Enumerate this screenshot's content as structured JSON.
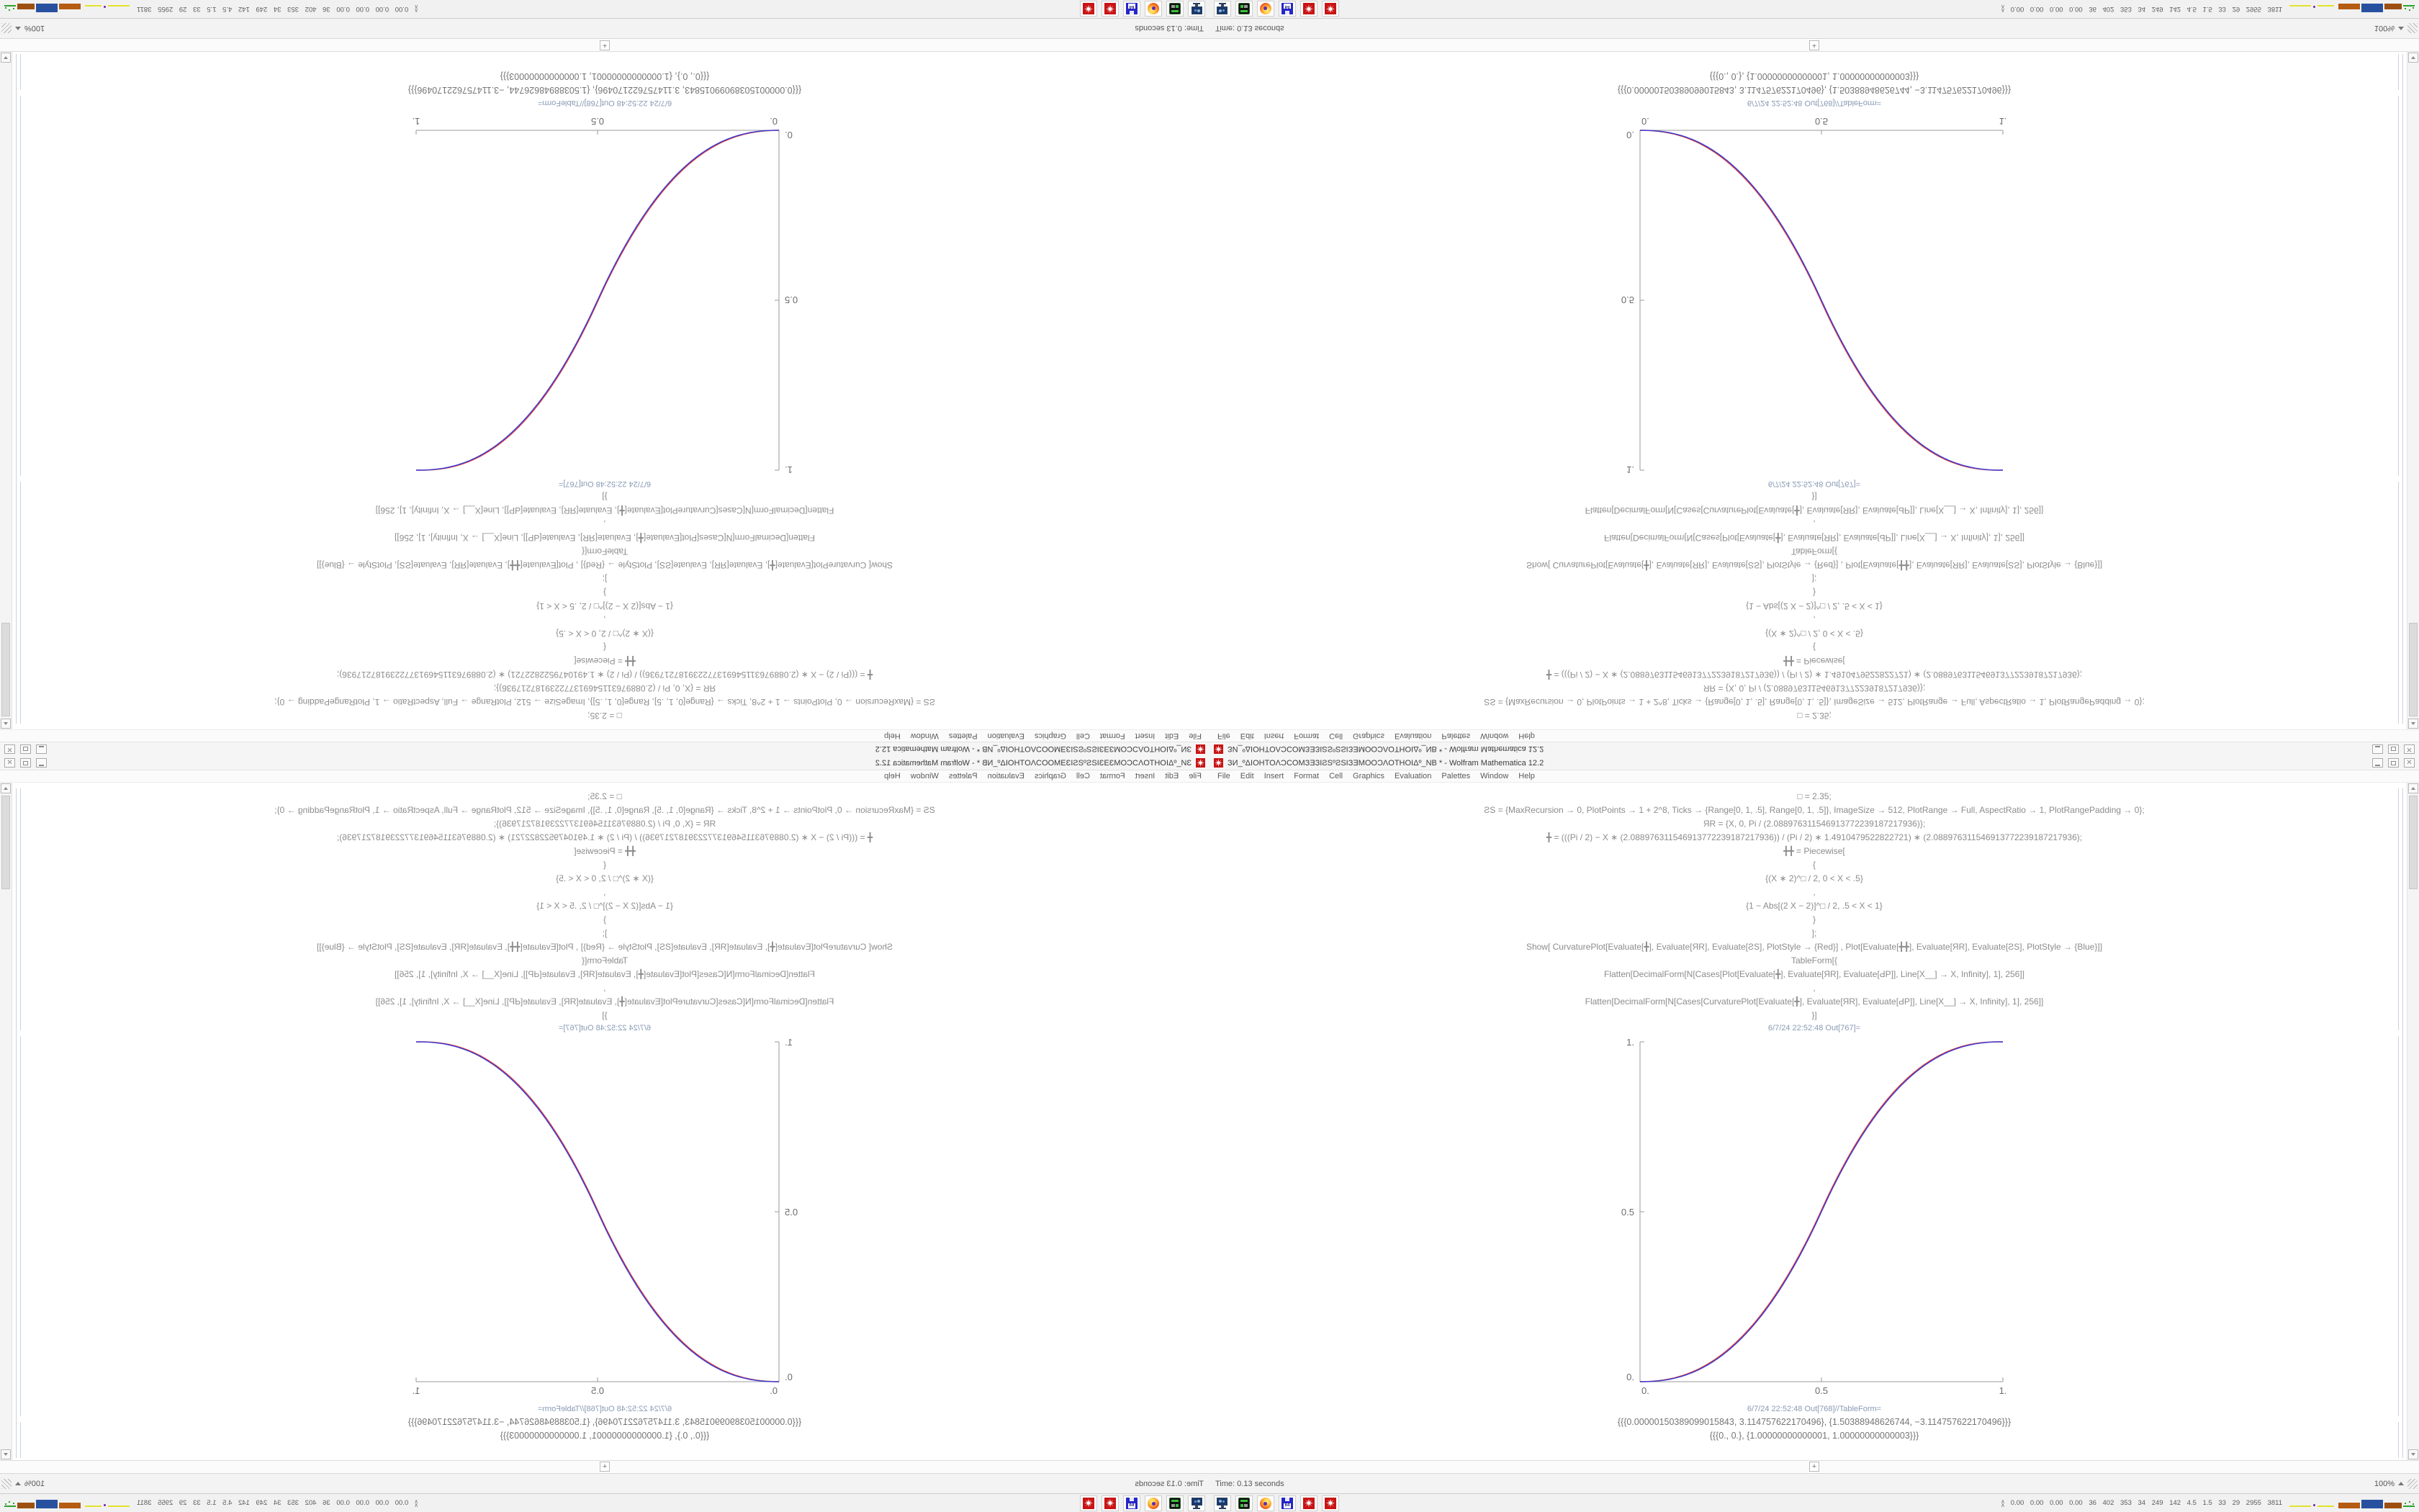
{
  "window": {
    "title": "ЗИ_ºΔIOHTOΛƆCOMЗƎЗIƧSºƧSIЗƎMOOƆΛOTHOIΔº_NB * - Wolfram Mathematica 12.2",
    "app_icon": "mathematica-red-spikey"
  },
  "menu": {
    "items": [
      "File",
      "Edit",
      "Insert",
      "Format",
      "Cell",
      "Graphics",
      "Evaluation",
      "Palettes",
      "Window",
      "Help"
    ]
  },
  "notebook": {
    "lines": [
      "□ = 2.35;",
      "ƧS = {MaxRecursion → 0, PlotPoints → 1 + 2^8, Ticks → {Range[0, 1, .5], Range[0, 1, .5]}, ImageSize → 512, PlotRange → Full, AspectRatio → 1, PlotRangePadding → 0};",
      "ЯR = {X, 0, Pi / (2.088976311546913772239187217936)};",
      "╋ = (((Pi / 2) − X ∗ (2.088976311546913772239187217936)) / (Pi / 2) ∗ 1.4910479522822721) ∗ (2.088976311546913772239187217936);",
      "╋╋ = Piecewise[",
      "{",
      "{(X ∗ 2)^□ / 2, 0 < X < .5}",
      ",",
      "{1 − Abs[(2 X − 2)]^□ / 2, .5 < X < 1}",
      "}",
      "];",
      "Show[  CurvaturePlot[Evaluate[╋], Evaluate[ЯR], Evaluate[ƧS], PlotStyle → {Red}]  ,  Plot[Evaluate[╋╋], Evaluate[ЯR], Evaluate[ƧS], PlotStyle → {Blue}]]",
      "TableForm[{",
      "Flatten[DecimalForm[N[Cases[Plot[Evaluate[╋], Evaluate[ЯR], Evaluate[ԀP]], Line[X__] → X, Infinity], 1], 256]]",
      ",",
      "Flatten[DecimalForm[N[Cases[CurvaturePlot[Evaluate[╋], Evaluate[ЯR], Evaluate[ԀP]], Line[X__] → X, Infinity], 1], 256]]",
      "}]"
    ],
    "out1_label": "6/7/24 22:52:48 Out[767]=",
    "out2_label": "6/7/24 22:52:48 Out[768]//TableForm=",
    "out2_rows": [
      "{{{0.00000150389099015843, 3.114757622170496}, {1.50388948626744, −3.114757622170496}}}",
      "{{{0., 0.}, {1.00000000000001, 1.00000000000003}}}"
    ]
  },
  "chart_data": {
    "type": "line",
    "title": "",
    "xlabel": "",
    "ylabel": "",
    "x_range": [
      0,
      1
    ],
    "y_range": [
      0,
      1
    ],
    "x_ticks": [
      0,
      0.5,
      1
    ],
    "y_ticks": [
      0,
      0.5,
      1
    ],
    "x_tick_labels": [
      "0.",
      "0.5",
      "1."
    ],
    "y_tick_labels": [
      "0.",
      "0.5",
      "1."
    ],
    "grid": false,
    "legend": false,
    "exponent": 2.35,
    "function": "piecewise: y=(2x)^2.35/2 for 0<=x<=0.5 ; y=1-(2-2x)^2.35/2 for 0.5<x<=1",
    "series": [
      {
        "name": "CurvaturePlot (Red)",
        "color": "#d63a3a"
      },
      {
        "name": "Plot (Blue)",
        "color": "#3a3ad6"
      }
    ],
    "sample_points": [
      [
        0,
        0
      ],
      [
        0.125,
        0.019
      ],
      [
        0.25,
        0.098
      ],
      [
        0.375,
        0.254
      ],
      [
        0.5,
        0.5
      ],
      [
        0.625,
        0.746
      ],
      [
        0.75,
        0.902
      ],
      [
        0.875,
        0.981
      ],
      [
        1,
        1
      ]
    ]
  },
  "statusbar": {
    "time": "Time: 0.13 seconds",
    "magnification": "100%"
  },
  "taskbar": {
    "quicklaunch": [
      {
        "name": "system-monitor"
      },
      {
        "name": "storage-terminal"
      },
      {
        "name": "firefox"
      },
      {
        "name": "floppy-disk",
        "label": "64"
      },
      {
        "name": "mathematica-red-gear"
      },
      {
        "name": "mathematica-red-gear"
      }
    ],
    "tray_numbers": "0.00 0.00 0.00 0.00 36 402 353 34 249 142 4.5 1.5 33 29 2955 3811"
  },
  "colors": {
    "app_red": "#c81414",
    "plot_red": "#d63a3a",
    "plot_blue": "#3a3ad6",
    "out_label": "#8a9ab5",
    "axis": "#9a9a9a"
  }
}
